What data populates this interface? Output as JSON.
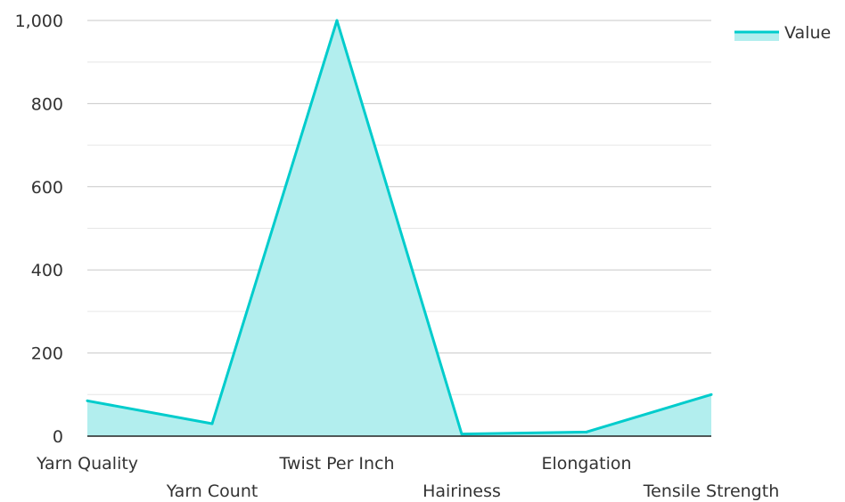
{
  "chart_data": {
    "type": "area",
    "categories": [
      "Yarn Quality",
      "Yarn Count",
      "Twist Per Inch",
      "Hairiness",
      "Elongation",
      "Tensile Strength"
    ],
    "series": [
      {
        "name": "Value",
        "values": [
          85,
          30,
          1000,
          5,
          10,
          100
        ],
        "color": "#00cccc",
        "fill": "#b2eeee"
      }
    ],
    "y_ticks": [
      "0",
      "200",
      "400",
      "600",
      "800",
      "1,000"
    ],
    "ylim": [
      0,
      1000
    ],
    "grid": true,
    "legend_position": "top-right"
  }
}
